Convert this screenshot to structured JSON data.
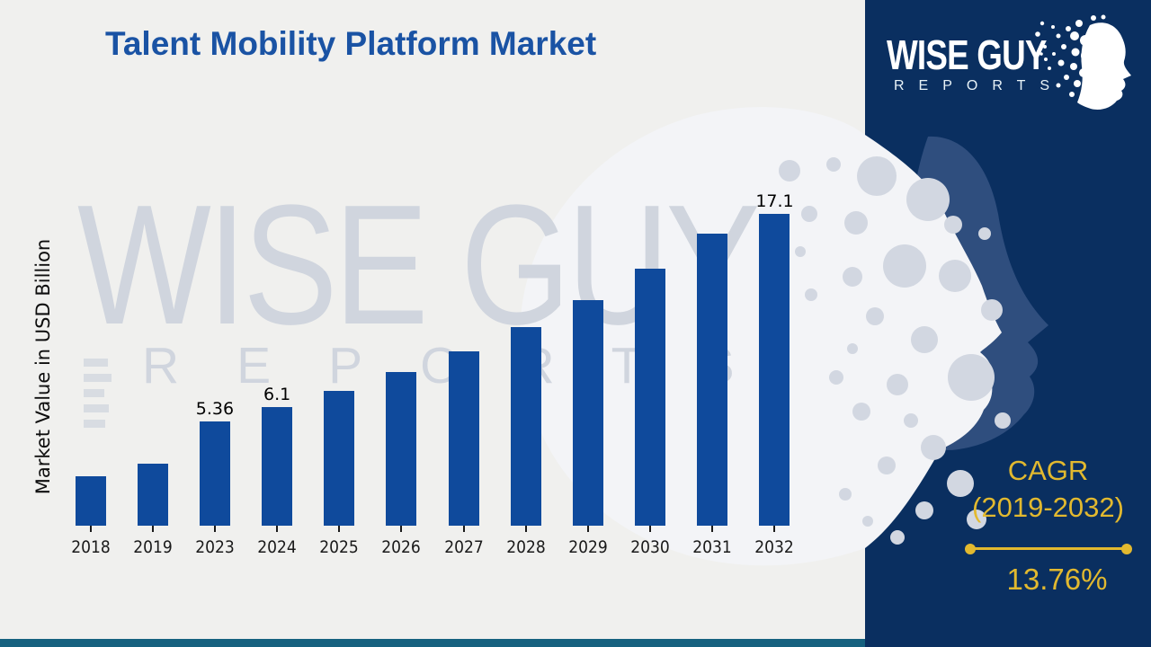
{
  "title": "Talent Mobility Platform Market",
  "y_axis_label": "Market Value in USD Billion",
  "watermark": {
    "line1": "WISE GUY",
    "line2": "REPORTS"
  },
  "brand": {
    "line1": "WISE GUY",
    "line2": "REPORTS"
  },
  "cagr": {
    "label": "CAGR",
    "range": "(2019-2032)",
    "value": "13.76%"
  },
  "icons": {
    "brand_logo": "face-profile-dots-icon",
    "panel_art": "face-profile-silhouette"
  },
  "colors": {
    "page_bg": "#f0f0ee",
    "panel_bg": "#0a2f60",
    "bar": "#0f4a9c",
    "title": "#1a53a4",
    "gold": "#e2b92f",
    "teal_strip": "#16617f",
    "watermark_gray": "#d0d5de",
    "emblem_head_white": "#f3f4f7",
    "emblem_shadow_blue": "#2f4e7e",
    "emblem_dots_gray": "#d2d7e1"
  },
  "chart_data": {
    "type": "bar",
    "title": "Talent Mobility Platform Market",
    "xlabel": "",
    "ylabel": "Market Value in USD Billion",
    "categories": [
      "2018",
      "2019",
      "2023",
      "2024",
      "2025",
      "2026",
      "2027",
      "2028",
      "2029",
      "2030",
      "2031",
      "2032"
    ],
    "values": [
      2.55,
      3.2,
      5.36,
      6.1,
      6.94,
      7.89,
      8.98,
      10.21,
      11.62,
      13.22,
      15.03,
      17.1
    ],
    "bar_labels": [
      "",
      "",
      "5.36",
      "6.1",
      "",
      "",
      "",
      "",
      "",
      "",
      "",
      "17.1"
    ],
    "ylim": [
      0,
      18.5
    ],
    "grid": false,
    "legend": null,
    "bar_color": "#0f4a9c"
  }
}
